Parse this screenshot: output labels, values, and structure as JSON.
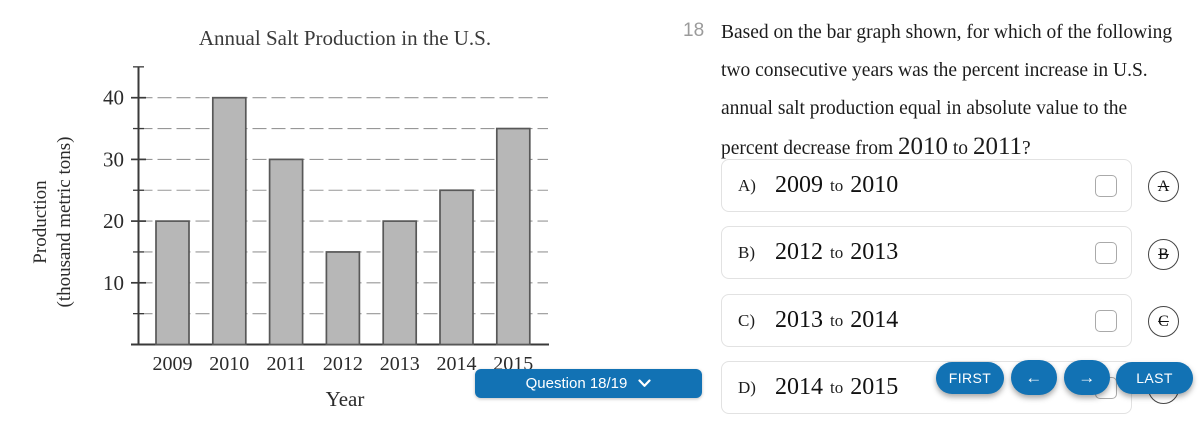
{
  "accent_blue": "#1272b4",
  "chart_data": {
    "type": "bar",
    "title": "Annual Salt Production in the U.S.",
    "categories": [
      "2009",
      "2010",
      "2011",
      "2012",
      "2013",
      "2014",
      "2015"
    ],
    "values": [
      20,
      40,
      30,
      15,
      20,
      25,
      35
    ],
    "xlabel": "Year",
    "ylabel_line1": "Production",
    "ylabel_line2": "(thousand metric tons)",
    "yticks": [
      10,
      20,
      30,
      40
    ],
    "ylim": [
      0,
      45
    ],
    "gridline_step": 5,
    "grid": "dashed horizontal",
    "bar_fill": "#b7b7b7",
    "bar_stroke": "#585858",
    "grid_color": "#979797",
    "axis_color": "#3a3a3a"
  },
  "question": {
    "number": "18",
    "lines": [
      "Based on the bar graph shown, for which of the following",
      "two consecutive years was the percent increase in U.S.",
      "annual salt production equal in absolute value to the"
    ],
    "tail": {
      "prefix": "percent decrease from ",
      "year_from": "2010",
      "middle": " to ",
      "year_to": "2011",
      "suffix": "?"
    }
  },
  "options": [
    {
      "letter": "A)",
      "year_from": "2009",
      "to_word": "to",
      "year_to": "2010",
      "badge": "A",
      "checked": false,
      "eliminated": true
    },
    {
      "letter": "B)",
      "year_from": "2012",
      "to_word": "to",
      "year_to": "2013",
      "badge": "B",
      "checked": false,
      "eliminated": true
    },
    {
      "letter": "C)",
      "year_from": "2013",
      "to_word": "to",
      "year_to": "2014",
      "badge": "C",
      "checked": false,
      "eliminated": true
    },
    {
      "letter": "D)",
      "year_from": "2014",
      "to_word": "to",
      "year_to": "2015",
      "badge": "D",
      "checked": false,
      "eliminated": true
    }
  ],
  "footer": {
    "question_selector": "Question 18/19",
    "nav": {
      "first": "FIRST",
      "prev": "←",
      "next": "→",
      "last": "LAST"
    }
  }
}
